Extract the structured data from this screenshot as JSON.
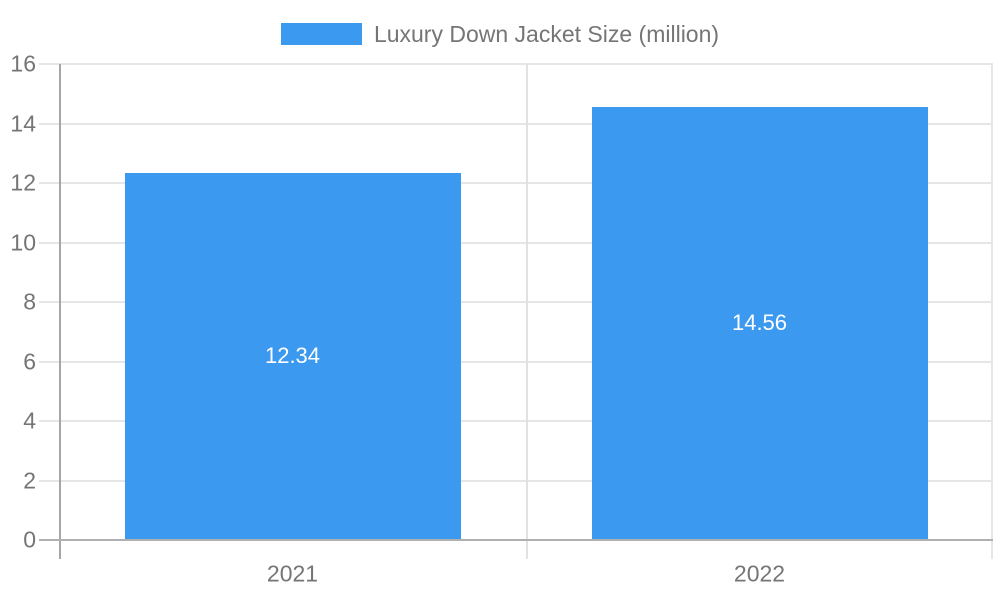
{
  "legend": {
    "label": "Luxury Down Jacket Size (million)"
  },
  "chart_data": {
    "type": "bar",
    "title": "",
    "categories": [
      "2021",
      "2022"
    ],
    "series": [
      {
        "name": "Luxury Down Jacket Size (million)",
        "values": [
          12.34,
          14.56
        ]
      }
    ],
    "data_labels": [
      "12.34",
      "14.56"
    ],
    "xlabel": "",
    "ylabel": "",
    "ylim": [
      0,
      16
    ],
    "yticks": [
      "0",
      "2",
      "4",
      "6",
      "8",
      "10",
      "12",
      "14",
      "16"
    ],
    "grid": true,
    "legend_position": "top-center",
    "colors": {
      "bar": "#3b99ef",
      "axis_text": "#757575",
      "legend_text": "#757575",
      "data_label_text": "#ffffff",
      "gridline": "#e6e6e6",
      "x_axis_line": "#b0b0b0",
      "y_axis_line": "#a6a6a6",
      "plot_right_border": "#e6e6e6",
      "mid_gridline": "#e2e2e2"
    }
  }
}
